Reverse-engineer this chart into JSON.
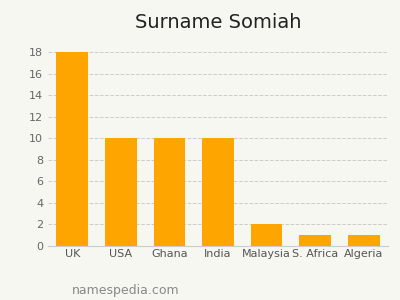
{
  "title": "Surname Somiah",
  "categories": [
    "UK",
    "USA",
    "Ghana",
    "India",
    "Malaysia",
    "S. Africa",
    "Algeria"
  ],
  "values": [
    18,
    10,
    10,
    10,
    2,
    1,
    1
  ],
  "bar_color": "#FFA500",
  "ylim": [
    0,
    19.5
  ],
  "yticks": [
    0,
    2,
    4,
    6,
    8,
    10,
    12,
    14,
    16,
    18
  ],
  "grid_color": "#cccccc",
  "background_color": "#f7f7f2",
  "title_fontsize": 14,
  "tick_fontsize": 8,
  "footer_text": "namespedia.com",
  "footer_fontsize": 9
}
